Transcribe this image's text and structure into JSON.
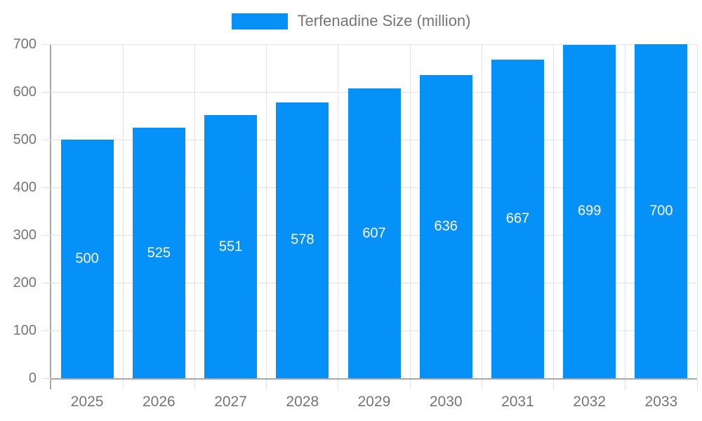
{
  "legend": {
    "label": "Terfenadine Size (million)"
  },
  "chart_data": {
    "type": "bar",
    "title": "",
    "legend_entries": [
      "Terfenadine Size (million)"
    ],
    "legend_position": "top",
    "categories": [
      "2025",
      "2026",
      "2027",
      "2028",
      "2029",
      "2030",
      "2031",
      "2032",
      "2033"
    ],
    "series": [
      {
        "name": "Terfenadine Size (million)",
        "values": [
          500,
          525,
          551,
          578,
          607,
          636,
          667,
          699,
          700
        ]
      }
    ],
    "value_labels": [
      "500",
      "525",
      "551",
      "578",
      "607",
      "636",
      "667",
      "699",
      "700"
    ],
    "xlabel": "",
    "ylabel": "",
    "ylim": [
      0,
      700
    ],
    "yticks": [
      0,
      100,
      200,
      300,
      400,
      500,
      600,
      700
    ],
    "grid": true,
    "colors": {
      "bar": "#0591f8",
      "value_label": "#ffffff",
      "axis_text": "#757575",
      "grid_line": "#e2e2e2",
      "axis_line": "#a8a8a8",
      "background": "#ffffff"
    }
  }
}
